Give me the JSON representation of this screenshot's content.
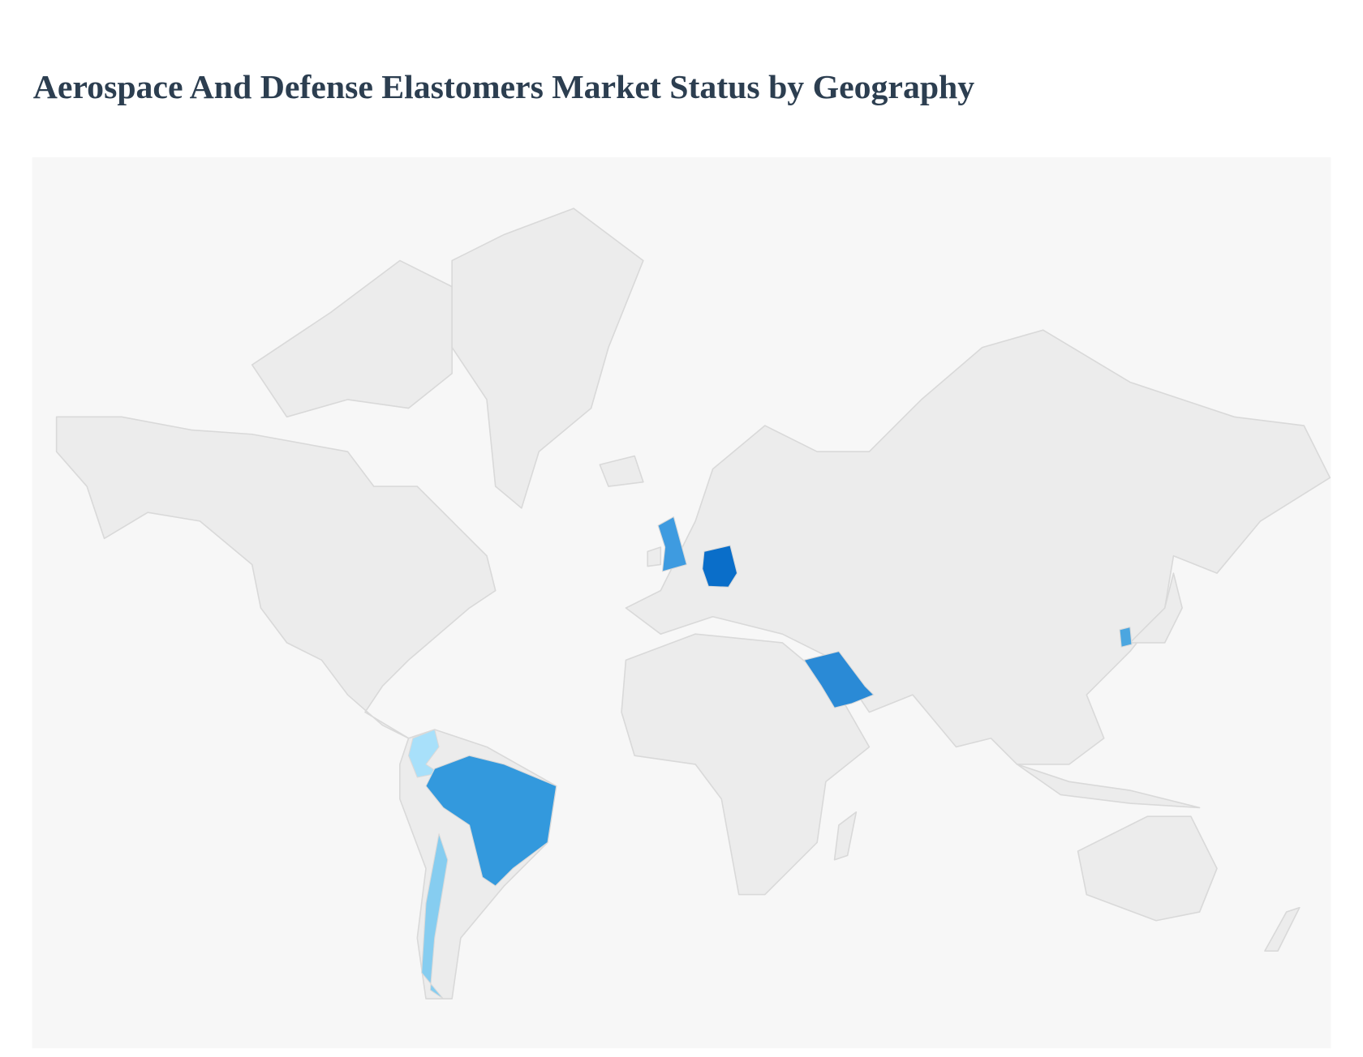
{
  "header": {
    "title": "Aerospace And Defense Elastomers Market Status by Geography"
  }
}
